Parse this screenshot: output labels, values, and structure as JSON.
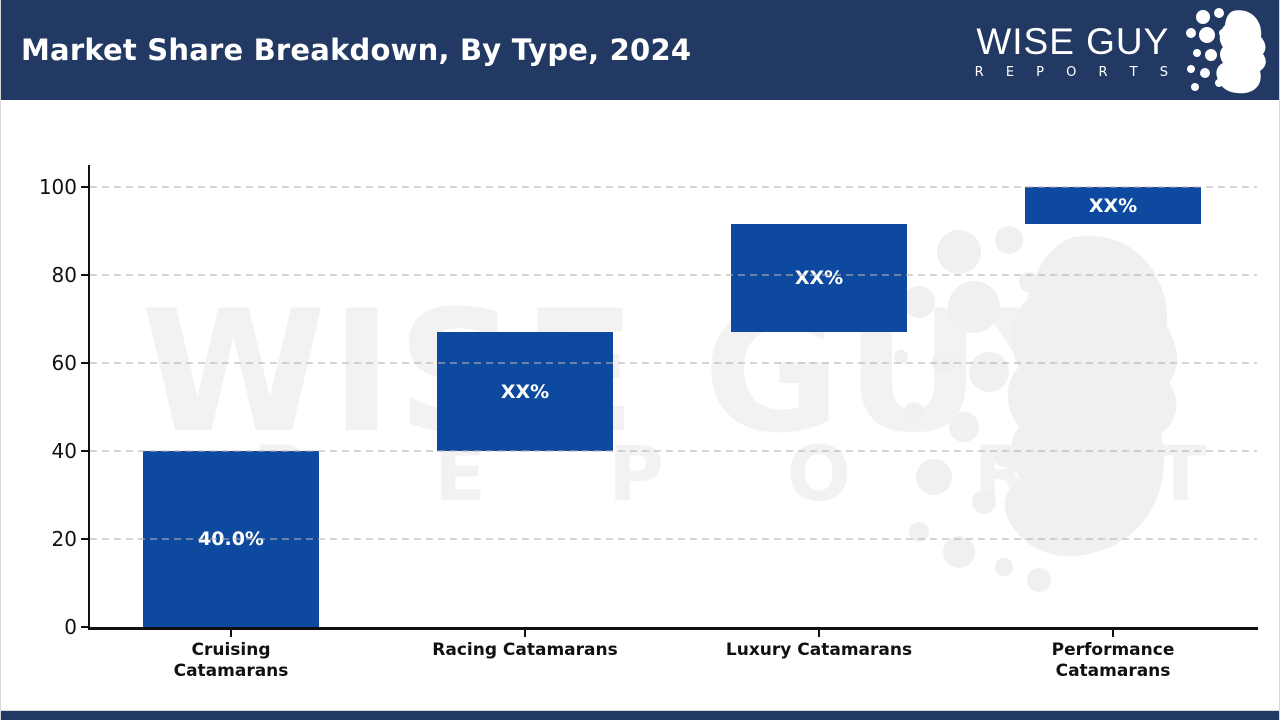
{
  "header": {
    "title": "Market Share Breakdown, By Type, 2024",
    "bg_color": "#223963",
    "logo": {
      "name": "WISE GUY",
      "subtitle": "R E P O R T S"
    }
  },
  "watermark": {
    "line1": "WISE GUY",
    "line2": "R E P O R T S"
  },
  "chart_data": {
    "type": "bar",
    "subtype": "waterfall",
    "title": "Market Share Breakdown, By Type, 2024",
    "categories": [
      "Cruising Catamarans",
      "Racing Catamarans",
      "Luxury Catamarans",
      "Performance Catamarans"
    ],
    "categories_display": [
      "Cruising\nCatamarans",
      "Racing Catamarans",
      "Luxury Catamarans",
      "Performance\nCatamarans"
    ],
    "segments": [
      {
        "category": "Cruising Catamarans",
        "label": "40.0%",
        "start": 0,
        "end": 40
      },
      {
        "category": "Racing Catamarans",
        "label": "XX%",
        "start": 40,
        "end": 67
      },
      {
        "category": "Luxury Catamarans",
        "label": "XX%",
        "start": 67,
        "end": 91.5
      },
      {
        "category": "Performance Catamarans",
        "label": "XX%",
        "start": 91.5,
        "end": 100
      }
    ],
    "y_ticks": [
      0,
      20,
      40,
      60,
      80,
      100
    ],
    "ylim": [
      0,
      105
    ],
    "xlabel": "",
    "ylabel": "",
    "legend": "none",
    "grid": "horizontal-dashed",
    "bar_color": "#0d499e",
    "axis_color": "#111111",
    "gridline_color": "#d9d9d9",
    "value_label_color": "#ffffff"
  }
}
